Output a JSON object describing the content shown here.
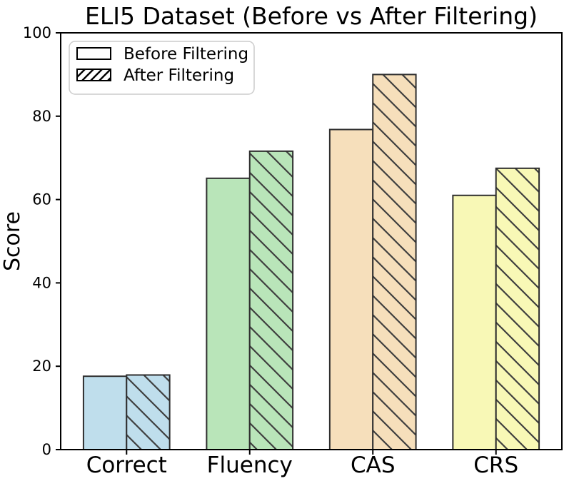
{
  "title": "ELI5 Dataset (Before vs After Filtering)",
  "chart_data": {
    "type": "bar",
    "title": "ELI5 Dataset (Before vs After Filtering)",
    "xlabel": "",
    "ylabel": "Score",
    "categories": [
      "Correct",
      "Fluency",
      "CAS",
      "CRS"
    ],
    "series": [
      {
        "name": "Before Filtering",
        "style": "solid",
        "values": [
          17.6,
          65.1,
          76.8,
          61.0
        ]
      },
      {
        "name": "After Filtering",
        "style": "hatched",
        "values": [
          17.9,
          71.6,
          90.0,
          67.5
        ]
      }
    ],
    "ylim": [
      0,
      100
    ],
    "yticks": [
      0,
      20,
      40,
      60,
      80,
      100
    ],
    "grid": false,
    "legend_position": "upper-left",
    "bar_colors": [
      "#bfdeec",
      "#b9e5b9",
      "#f6dfbb",
      "#f8f8b6"
    ],
    "edge_color": "#2e2e2e",
    "hatch_color": "#3f3f3f",
    "axis_color": "#000000",
    "legend_border_color": "#cccccc"
  }
}
